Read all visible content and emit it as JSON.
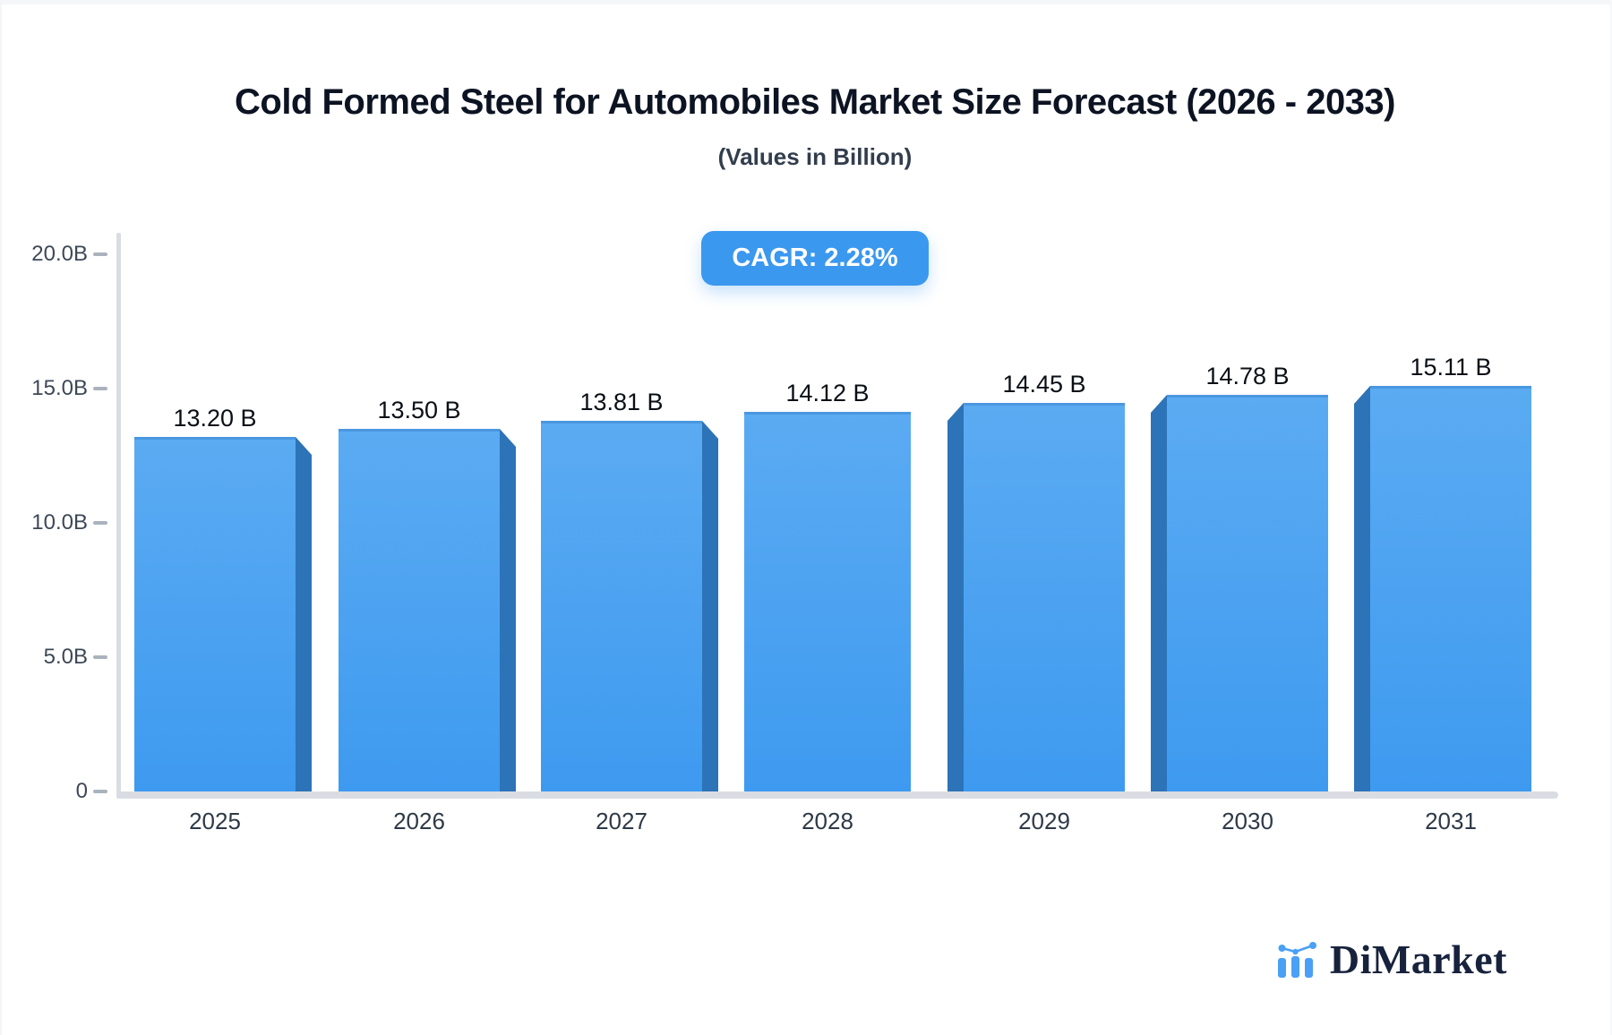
{
  "chart_data": {
    "type": "bar",
    "title": "Cold Formed Steel for Automobiles Market Size Forecast (2026 - 2033)",
    "subtitle": "(Values in Billion)",
    "badge_label": "CAGR: 2.28%",
    "cagr": "2.28%",
    "categories": [
      "2025",
      "2026",
      "2027",
      "2028",
      "2029",
      "2030",
      "2031"
    ],
    "values": [
      13.2,
      13.5,
      13.81,
      14.12,
      14.45,
      14.78,
      15.11
    ],
    "value_labels": [
      "13.20 B",
      "13.50 B",
      "13.81 B",
      "14.12 B",
      "14.45 B",
      "14.78 B",
      "15.11 B"
    ],
    "ylim": [
      0,
      20
    ],
    "yticks": [
      {
        "label": "20.0B",
        "value": 20
      },
      {
        "label": "15.0B",
        "value": 15
      },
      {
        "label": "10.0B",
        "value": 10
      },
      {
        "label": "5.0B",
        "value": 5
      },
      {
        "label": "0",
        "value": 0
      }
    ],
    "grid": false,
    "legend": false,
    "bar_style": "3d-extruded",
    "colors": {
      "bar_face_top": "#5babf2",
      "bar_face_bottom": "#3e9af0",
      "bar_top_edge": "#4a97e0",
      "bar_side": "#2d73b7",
      "axis": "#d9dde3",
      "tick_dash": "#aab3bd",
      "tick_label": "#3d4856",
      "category_label": "#2e3947",
      "value_label": "#0a0f16",
      "title": "#0c1322",
      "subtitle": "#323d4d",
      "badge_bg": "#3b98ef",
      "badge_text": "#ffffff"
    }
  },
  "logo": {
    "text": "DiMarket",
    "text_color": "#17223c",
    "icon_color": "#4aa0f5"
  }
}
